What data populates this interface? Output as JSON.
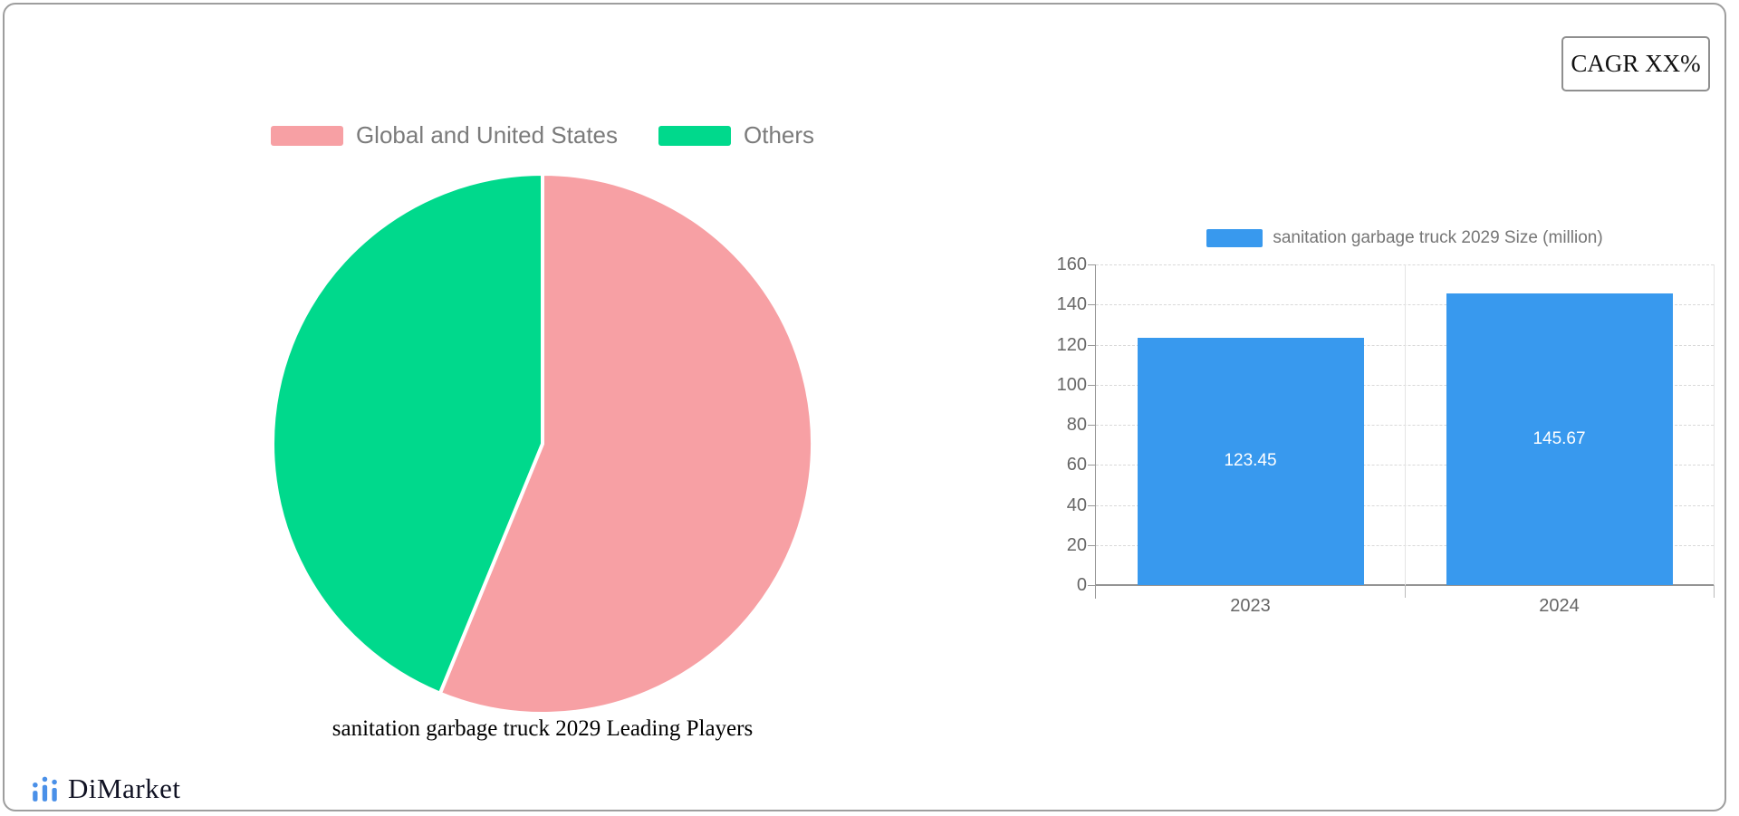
{
  "card": {
    "cagr_label": "CAGR XX%"
  },
  "logo": {
    "text": "DiMarket",
    "icon": "bar-chart-icon",
    "icon_color": "#4a90e8",
    "text_color": "#101223"
  },
  "pie_section": {
    "caption": "sanitation garbage truck 2029 Leading Players",
    "legend": [
      {
        "label": "Global and United States",
        "color": "#f7a0a4"
      },
      {
        "label": "Others",
        "color": "#00d98c"
      }
    ]
  },
  "bar_section": {
    "legend_label": "sanitation garbage truck 2029 Size (million)",
    "bar_color": "#3899ee"
  },
  "chart_data": [
    {
      "type": "pie",
      "title": "sanitation garbage truck 2029 Leading Players",
      "legend_position": "top",
      "start_angle_deg": 0,
      "direction": "clockwise",
      "slices": [
        {
          "label": "Global and United States",
          "value_pct": 56.2,
          "color": "#f7a0a4"
        },
        {
          "label": "Others",
          "value_pct": 43.8,
          "color": "#00d98c"
        }
      ]
    },
    {
      "type": "bar",
      "title": "",
      "categories": [
        "2023",
        "2024"
      ],
      "series": [
        {
          "name": "sanitation garbage truck 2029 Size (million)",
          "values": [
            123.45,
            145.67
          ],
          "color": "#3899ee"
        }
      ],
      "bar_labels": [
        "123.45",
        "145.67"
      ],
      "label_position": "inside-center",
      "xlabel": "",
      "ylabel": "",
      "ylim": [
        0,
        160
      ],
      "yticks": [
        0,
        20,
        40,
        60,
        80,
        100,
        120,
        140,
        160
      ],
      "grid": true,
      "legend_position": "top"
    }
  ]
}
